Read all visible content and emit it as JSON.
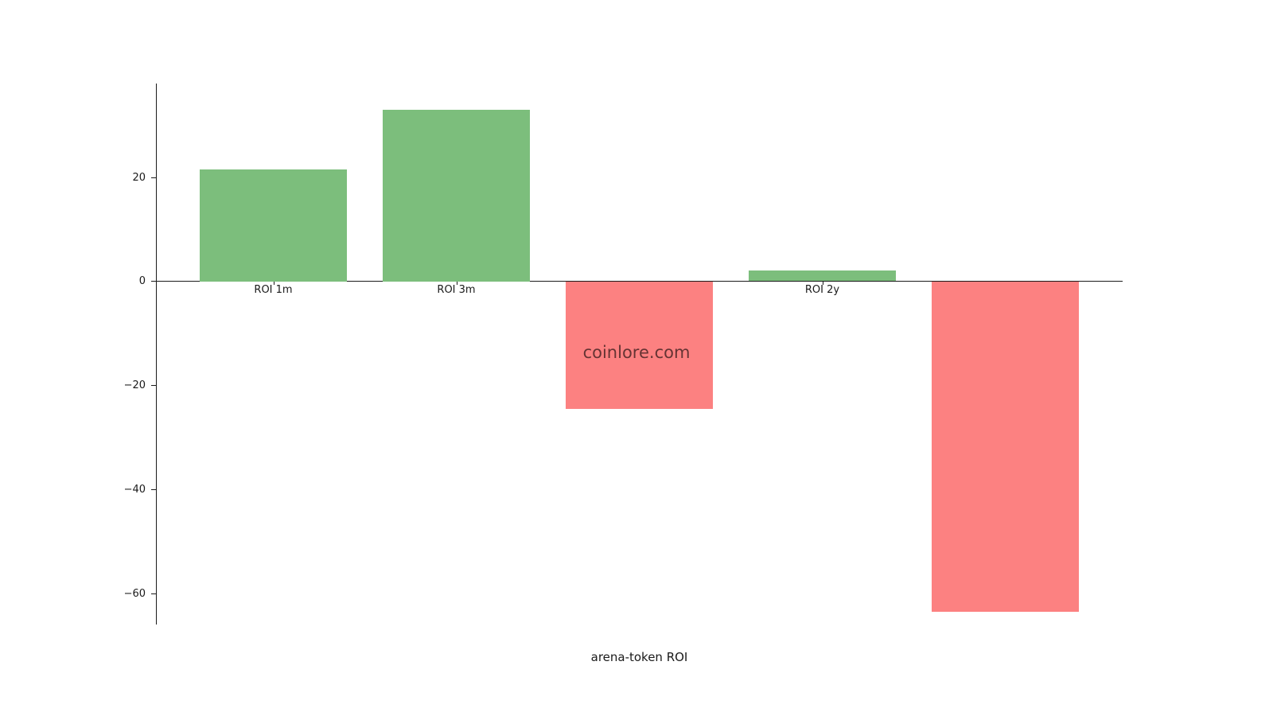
{
  "page": {
    "background_color": "#ffffff",
    "axis_color": "#1a1a1a"
  },
  "title": {
    "text": "arena-token ROI"
  },
  "watermark": {
    "text": "coinlore.com",
    "color": "rgba(0,0,0,0.6)"
  },
  "chart_data": {
    "type": "bar",
    "title": "arena-token ROI",
    "categories": [
      "ROI 1m",
      "ROI 3m",
      "",
      "ROI 2y",
      ""
    ],
    "values": [
      21.5,
      33,
      -24.4,
      2,
      -63.5
    ],
    "y_ticks": [
      20,
      0,
      -20,
      -40,
      -60
    ],
    "ylim": [
      -66,
      38
    ],
    "xlabel": "",
    "ylabel": "",
    "grid": false,
    "legend": false,
    "positive_color": "#7cbe7c",
    "negative_color": "#fc8181",
    "visible_category_labels": [
      "ROI 1m",
      "ROI 3m",
      "ROI 2y"
    ]
  }
}
